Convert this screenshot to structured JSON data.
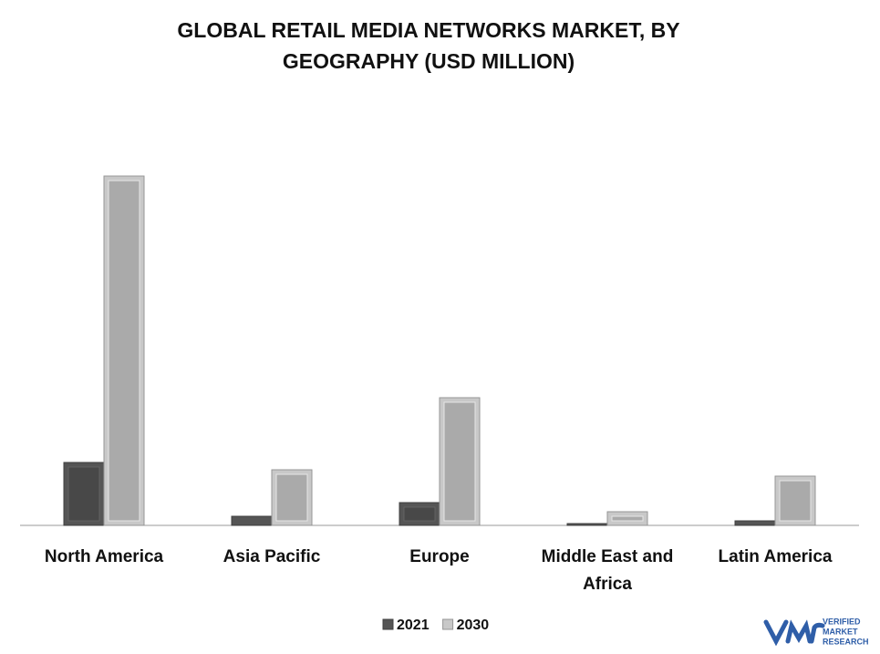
{
  "chart_data": {
    "type": "bar",
    "title": "GLOBAL RETAIL MEDIA NETWORKS MARKET, BY GEOGRAPHY (USD MILLION)",
    "categories": [
      "North America",
      "Asia Pacific",
      "Europe",
      "Middle East and Africa",
      "Latin America"
    ],
    "series": [
      {
        "name": "2021",
        "color": "#555555",
        "values": [
          69,
          10,
          25,
          2,
          5
        ]
      },
      {
        "name": "2030",
        "color": "#c8c8c8",
        "values": [
          383,
          61,
          140,
          15,
          54
        ]
      }
    ],
    "ylim": [
      0,
      400
    ]
  },
  "logo": {
    "lines": [
      "VERIFIED",
      "MARKET",
      "RESEARCH"
    ]
  }
}
